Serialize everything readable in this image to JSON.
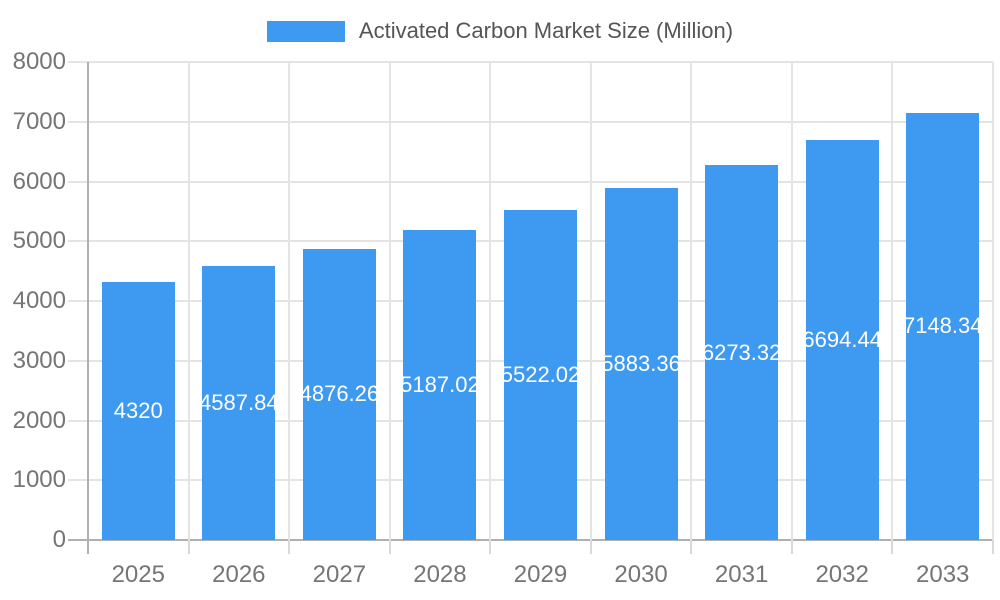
{
  "legend": {
    "label": "Activated Carbon Market Size (Million)"
  },
  "chart_data": {
    "type": "bar",
    "title": "Activated Carbon Market Size (Million)",
    "xlabel": "",
    "ylabel": "",
    "categories": [
      "2025",
      "2026",
      "2027",
      "2028",
      "2029",
      "2030",
      "2031",
      "2032",
      "2033"
    ],
    "series": [
      {
        "name": "Activated Carbon Market Size (Million)",
        "values": [
          4320,
          4587.84,
          4876.26,
          5187.02,
          5522.02,
          5883.36,
          6273.32,
          6694.44,
          7148.34
        ]
      }
    ],
    "value_labels": [
      "4320",
      "4587.84",
      "4876.26",
      "5187.02",
      "5522.02",
      "5883.36",
      "6273.32",
      "6694.44",
      "7148.34"
    ],
    "ylim": [
      0,
      8000
    ],
    "yticks": [
      0,
      1000,
      2000,
      3000,
      4000,
      5000,
      6000,
      7000,
      8000
    ],
    "ytick_labels": [
      "0",
      "1000",
      "2000",
      "3000",
      "4000",
      "5000",
      "6000",
      "7000",
      "8000"
    ],
    "grid": true,
    "legend_position": "top",
    "value_label_position": "center-inside"
  },
  "colors": {
    "bar": "#3E9AF0",
    "grid": "#E4E4E4",
    "axis": "#B0B0B0",
    "subtick": "#D9D9D9",
    "tick_text": "#757575",
    "legend_text": "#555555",
    "value_label": "#FFFFFF",
    "background": "#FFFFFF"
  }
}
